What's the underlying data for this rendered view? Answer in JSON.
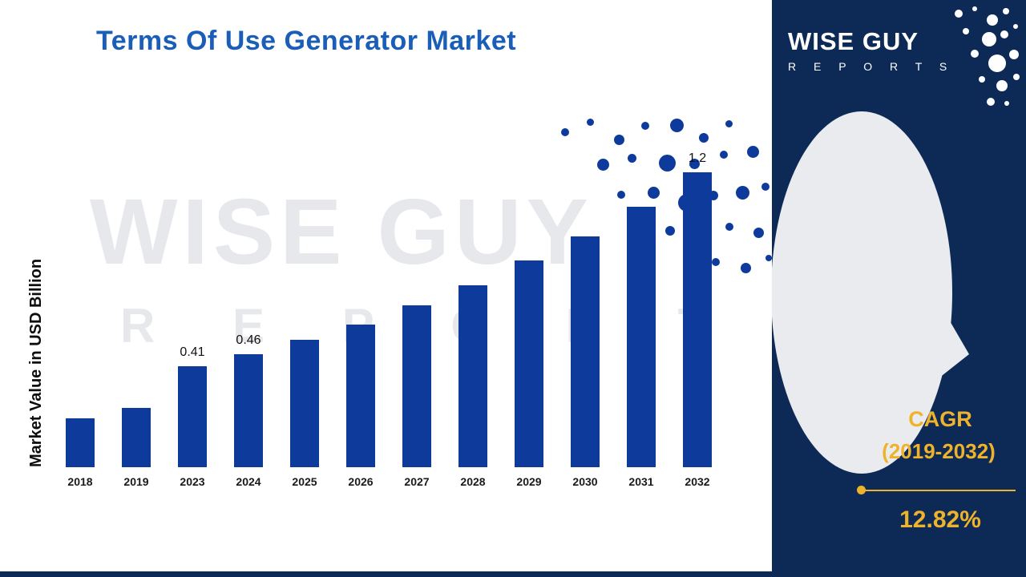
{
  "page": {
    "title": "Terms Of Use Generator Market",
    "ylabel": "Market Value in USD Billion"
  },
  "brand": {
    "logo_line1": "WISE GUY",
    "logo_line2": "R E P O R T S",
    "cagr_label": "CAGR",
    "cagr_period": "(2019-2032)",
    "cagr_value": "12.82%"
  },
  "watermark": {
    "line1": "WISE GUY",
    "line2": "R E P O R T S"
  },
  "colors": {
    "title_blue": "#1a5eb8",
    "bar_blue": "#0e3a9c",
    "panel_navy": "#0d2a56",
    "accent_gold": "#eeb32a",
    "watermark_gray": "#e7e8eb",
    "silhouette_gray": "#e9ebee"
  },
  "chart_data": {
    "type": "bar",
    "title": "Terms Of Use Generator Market",
    "xlabel": "",
    "ylabel": "Market Value in USD Billion",
    "categories": [
      "2018",
      "2019",
      "2023",
      "2024",
      "2025",
      "2026",
      "2027",
      "2028",
      "2029",
      "2030",
      "2031",
      "2032"
    ],
    "values": [
      0.2,
      0.24,
      0.41,
      0.46,
      0.52,
      0.58,
      0.66,
      0.74,
      0.84,
      0.94,
      1.06,
      1.2
    ],
    "data_labels": {
      "2023": "0.41",
      "2024": "0.46",
      "2032": "1.2"
    },
    "ylim": [
      0,
      1.3
    ],
    "grid": false,
    "legend": false,
    "bar_color": "#0e3a9c"
  }
}
